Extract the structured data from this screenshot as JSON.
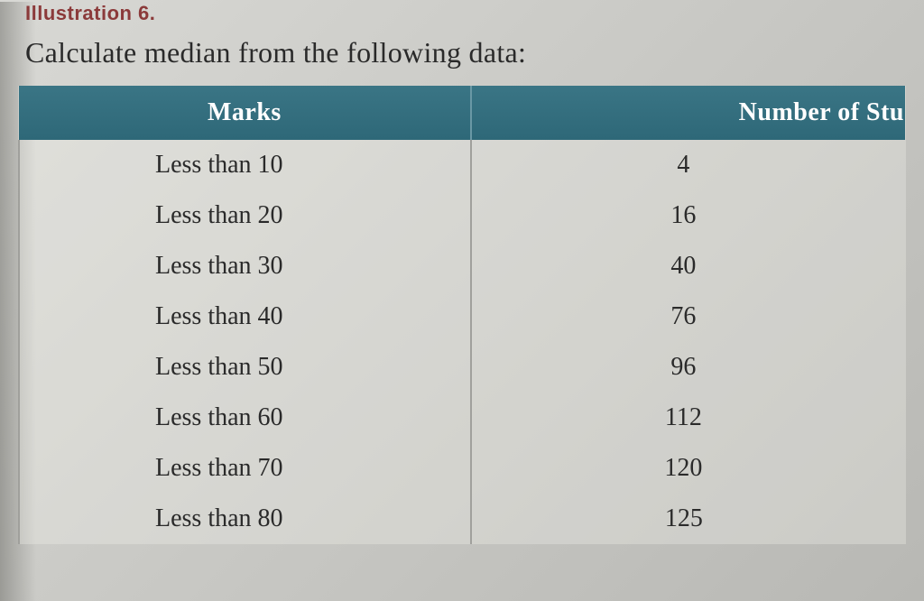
{
  "header": {
    "illustration_label": "Illustration 6.",
    "question": "Calculate median from the following data:"
  },
  "table": {
    "columns": [
      "Marks",
      "Number of Stu"
    ],
    "rows": [
      {
        "marks": "Less than 10",
        "count": "4"
      },
      {
        "marks": "Less than 20",
        "count": "16"
      },
      {
        "marks": "Less than 30",
        "count": "40"
      },
      {
        "marks": "Less than 40",
        "count": "76"
      },
      {
        "marks": "Less than 50",
        "count": "96"
      },
      {
        "marks": "Less than 60",
        "count": "112"
      },
      {
        "marks": "Less than 70",
        "count": "120"
      },
      {
        "marks": "Less than 80",
        "count": "125"
      }
    ],
    "header_bg_color": "#3a7585",
    "header_text_color": "#ffffff",
    "border_color": "#a0a09c",
    "cell_text_color": "#2a2a2a",
    "header_fontsize": 28,
    "cell_fontsize": 28
  },
  "page_style": {
    "background_color": "#d0d0cc",
    "illustration_color": "#8b3a3a",
    "question_color": "#2a2a2a",
    "question_fontsize": 32
  }
}
